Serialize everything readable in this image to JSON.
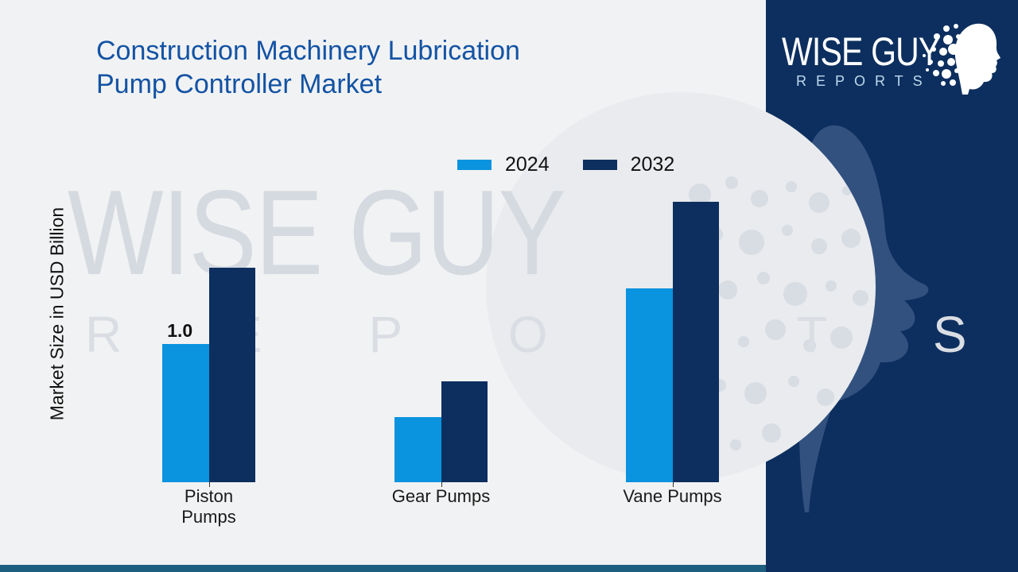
{
  "page": {
    "background_color": "#f1f2f3",
    "bottom_strip_color": "#1d5f7e"
  },
  "header": {
    "title": "Construction Machinery Lubrication Pump Controller Market",
    "title_color": "#1353a4"
  },
  "brand": {
    "panel_color": "#0d2f5f",
    "logo_line1": "WISE GUY",
    "logo_line2": "REPORTS",
    "face_icon_color": "#ffffff",
    "background_face_color": "#32517f"
  },
  "watermark": {
    "line1": "WISE GUY",
    "line2": "R E P O R T S"
  },
  "chart_data": {
    "type": "bar",
    "title": "Construction Machinery Lubrication Pump Controller Market",
    "xlabel": "",
    "ylabel": "Market Size in USD Billion",
    "categories": [
      "Piston\nPumps",
      "Gear Pumps",
      "Vane Pumps"
    ],
    "series": [
      {
        "name": "2024",
        "color": "#0a93df",
        "values": [
          1.0,
          0.47,
          1.4
        ]
      },
      {
        "name": "2032",
        "color": "#0d2f5f",
        "values": [
          1.55,
          0.73,
          2.03
        ]
      }
    ],
    "annotations": [
      {
        "series": "2024",
        "category_index": 0,
        "label": "1.0"
      }
    ],
    "ylim": [
      0,
      2.2
    ],
    "grid": false,
    "legend_position": "top-center",
    "axis_lines": "hidden"
  }
}
